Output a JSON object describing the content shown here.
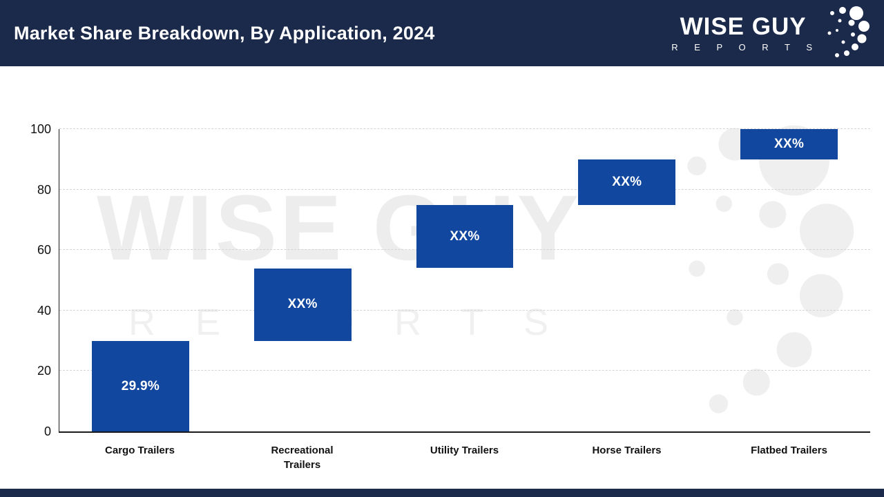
{
  "header": {
    "title": "Market Share Breakdown, By Application, 2024",
    "logo_primary": "WISE GUY",
    "logo_secondary": "R E P O R T S"
  },
  "watermark": {
    "line1": "WISE GUY",
    "line2": "REPORTS"
  },
  "colors": {
    "header_bg": "#1b2a4a",
    "footer_bg": "#1b2a4a",
    "bar": "#11479e",
    "bar_label": "#ffffff",
    "watermark": "#ededed",
    "grid": "#d4d4d4",
    "axis": "#1a1a1a"
  },
  "chart_data": {
    "type": "bar",
    "subtype": "waterfall",
    "title": "Market Share Breakdown, By Application, 2024",
    "categories": [
      "Cargo Trailers",
      "Recreational\nTrailers",
      "Utility Trailers",
      "Horse Trailers",
      "Flatbed Trailers"
    ],
    "segments": [
      {
        "category": "Cargo Trailers",
        "label": "29.9%",
        "start": 0,
        "end": 29.9
      },
      {
        "category": "Recreational Trailers",
        "label": "XX%",
        "start": 29.9,
        "end": 54
      },
      {
        "category": "Utility Trailers",
        "label": "XX%",
        "start": 54,
        "end": 75
      },
      {
        "category": "Horse Trailers",
        "label": "XX%",
        "start": 75,
        "end": 90
      },
      {
        "category": "Flatbed Trailers",
        "label": "XX%",
        "start": 90,
        "end": 100
      }
    ],
    "ylim": [
      0,
      100
    ],
    "yticks": [
      "0",
      "20",
      "40",
      "60",
      "80",
      "100"
    ],
    "grid": true,
    "legend": false,
    "gridline_style": "dashed"
  }
}
